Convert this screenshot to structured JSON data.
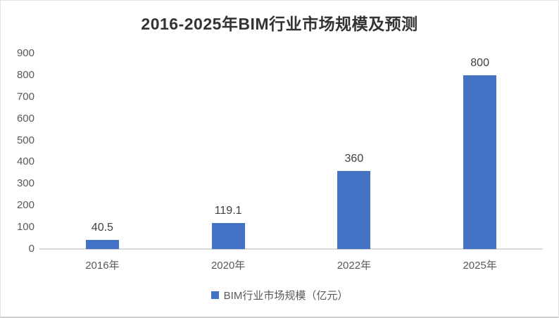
{
  "chart_data": {
    "type": "bar",
    "title": "2016-2025年BIM行业市场规模及预测",
    "categories": [
      "2016年",
      "2020年",
      "2022年",
      "2025年"
    ],
    "values": [
      40.5,
      119.1,
      360,
      800
    ],
    "value_labels": [
      "40.5",
      "119.1",
      "360",
      "800"
    ],
    "xlabel": "",
    "ylabel": "",
    "ylim": [
      0,
      900
    ],
    "ytick_step": 100,
    "grid": false,
    "legend_position": "bottom",
    "legend_label": "BIM行业市场规模（亿元）",
    "colors": {
      "bar": "#4472c4",
      "title_text": "#333333",
      "axis_text": "#595959",
      "data_label_text": "#404040",
      "baseline": "#d9d9d9",
      "background": "#ffffff"
    }
  }
}
